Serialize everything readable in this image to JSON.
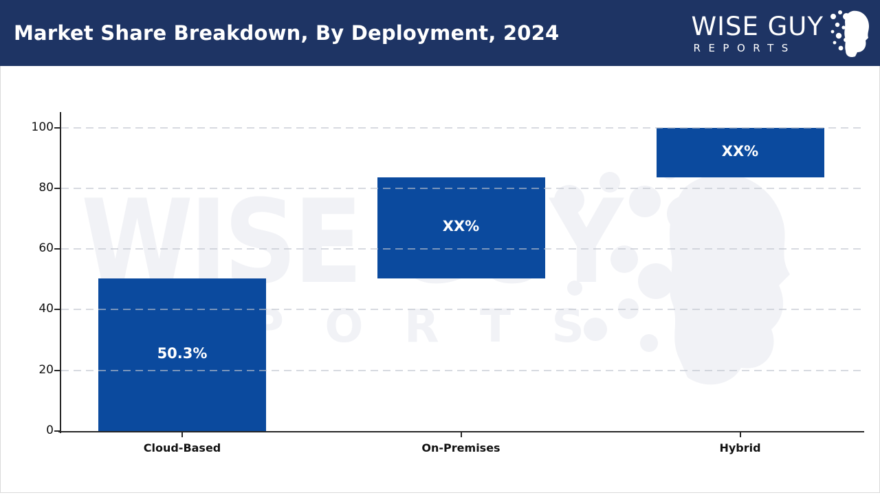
{
  "header": {
    "title": "Market Share Breakdown, By Deployment, 2024",
    "background_color": "#1E3464",
    "logo": {
      "line1": "WISE GUY",
      "line2": "REPORTS"
    }
  },
  "watermark": {
    "line1": "WISE GUY",
    "line2": "REPORTS"
  },
  "chart_data": {
    "type": "bar",
    "subtype": "floating-stacked-breakdown",
    "title": "Market Share Breakdown, By Deployment, 2024",
    "categories": [
      "Cloud-Based",
      "On-Premises",
      "Hybrid"
    ],
    "segments": [
      {
        "category": "Cloud-Based",
        "from": 0,
        "to": 50.3,
        "label": "50.3%"
      },
      {
        "category": "On-Premises",
        "from": 50.3,
        "to": 83.7,
        "label": "XX%"
      },
      {
        "category": "Hybrid",
        "from": 83.7,
        "to": 100,
        "label": "XX%"
      }
    ],
    "xlabel": "",
    "ylabel": "",
    "ylim": [
      0,
      100
    ],
    "yticks": [
      0,
      20,
      40,
      60,
      80,
      100
    ],
    "grid": "horizontal-dashed",
    "legend": "none",
    "bar_color": "#0B4A9E",
    "value_label_color": "#FFFFFF"
  }
}
